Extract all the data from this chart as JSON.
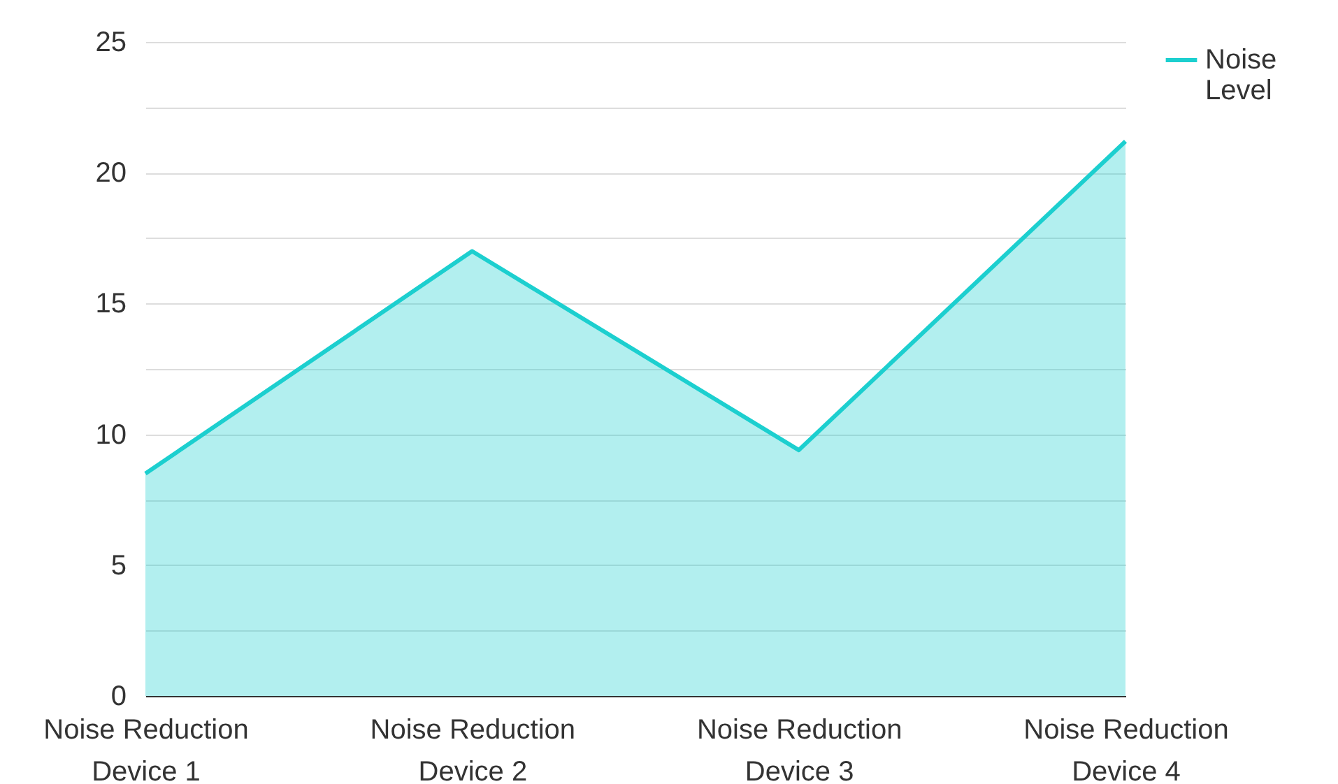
{
  "chart_data": {
    "type": "area",
    "categories": [
      "Noise Reduction Device 1",
      "Noise Reduction Device 2",
      "Noise Reduction Device 3",
      "Noise Reduction Device 4"
    ],
    "series": [
      {
        "name": "Noise Level",
        "color": "#1ccfcf",
        "values": [
          8.5,
          17,
          9.4,
          21.2
        ]
      }
    ],
    "ylim": [
      0,
      25
    ],
    "yticks": [
      0,
      {
        "value": 2.5,
        "label": null
      },
      5,
      {
        "value": 7.5,
        "label": null
      },
      10,
      {
        "value": 12.5,
        "label": null
      },
      15,
      {
        "value": 17.5,
        "label": null
      },
      20,
      {
        "value": 22.5,
        "label": null
      },
      25
    ],
    "grid": "y",
    "legend": "top right",
    "marker": "none"
  }
}
